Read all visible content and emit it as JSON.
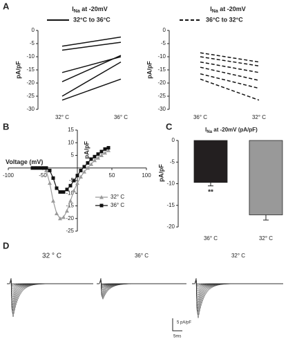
{
  "chart_data": [
    {
      "type": "line",
      "panel": "A",
      "title": "I",
      "title_subscript": "Na",
      "title_suffix": " at -20mV",
      "legend_label": "32°C to 36°C",
      "line_style": "solid",
      "y_label": "pA/pF",
      "categories": [
        "32° C",
        "36° C"
      ],
      "ylim": [
        -30,
        0
      ],
      "yticks": [
        0,
        -5,
        -10,
        -15,
        -20,
        -25,
        -30
      ],
      "series": [
        {
          "color": "#111111",
          "values": [
            -6,
            -2.5
          ]
        },
        {
          "color": "#111111",
          "values": [
            -7.5,
            -4.5
          ]
        },
        {
          "color": "#111111",
          "values": [
            -16,
            -10
          ]
        },
        {
          "color": "#111111",
          "values": [
            -19.5,
            -9.5
          ]
        },
        {
          "color": "#111111",
          "values": [
            -25,
            -12
          ]
        },
        {
          "color": "#111111",
          "values": [
            -26.5,
            -18.5
          ]
        }
      ]
    },
    {
      "type": "line",
      "title": "I",
      "title_subscript": "Na",
      "title_suffix": " at -20mV",
      "legend_label": "36°C to 32°C",
      "line_style": "dashed",
      "y_label": "pA/pF",
      "categories": [
        "36° C",
        "32° C"
      ],
      "ylim": [
        -30,
        0
      ],
      "yticks": [
        0,
        -5,
        -10,
        -15,
        -20,
        -25,
        -30
      ],
      "series": [
        {
          "color": "#111111",
          "values": [
            -8.5,
            -12
          ]
        },
        {
          "color": "#111111",
          "values": [
            -10,
            -13.5
          ]
        },
        {
          "color": "#111111",
          "values": [
            -12,
            -16
          ]
        },
        {
          "color": "#111111",
          "values": [
            -14,
            -19
          ]
        },
        {
          "color": "#111111",
          "values": [
            -16.5,
            -22
          ]
        },
        {
          "color": "#111111",
          "values": [
            -18.5,
            -26.5
          ]
        }
      ]
    },
    {
      "type": "scatter-line",
      "panel": "B",
      "x_label": "Voltage (mV)",
      "y_label": "pA/pF",
      "xlim": [
        -100,
        100
      ],
      "xticks": [
        -100,
        -50,
        50,
        100
      ],
      "ylim": [
        -25,
        15
      ],
      "yticks": [
        15,
        10,
        5,
        -5,
        -10,
        -15,
        -20,
        -25
      ],
      "x": [
        -65,
        -60,
        -55,
        -50,
        -45,
        -40,
        -35,
        -30,
        -25,
        -20,
        -15,
        -10,
        -5,
        0,
        5,
        10,
        15,
        20,
        25,
        30,
        35,
        40,
        45
      ],
      "series": [
        {
          "name": "32° C",
          "color": "#9a9a9a",
          "marker": "triangle",
          "values": [
            0,
            0,
            0,
            0,
            -1,
            -6,
            -13,
            -18,
            -20,
            -19.5,
            -17,
            -13,
            -9,
            -6,
            -3.5,
            -1.5,
            0,
            1.5,
            3,
            4,
            5,
            6,
            7
          ]
        },
        {
          "name": "36° C",
          "color": "#111111",
          "marker": "square",
          "values": [
            0,
            0,
            0,
            0,
            0,
            -1,
            -4,
            -8,
            -9.5,
            -9.5,
            -8.5,
            -7,
            -5,
            -3,
            -1,
            0.5,
            2,
            3.5,
            4.5,
            5.5,
            6.5,
            7.5,
            8
          ]
        }
      ]
    },
    {
      "type": "bar",
      "panel": "C",
      "title": "I",
      "title_subscript": "Na",
      "title_suffix": " at -20mV (pA/pF)",
      "y_label": "pA/pF",
      "categories": [
        "36° C",
        "32° C"
      ],
      "values": [
        -9.7,
        -17.2
      ],
      "errors": [
        0.8,
        1.2
      ],
      "colors": [
        "#231f20",
        "#999999"
      ],
      "annotation": "**",
      "ylim": [
        -20,
        0
      ],
      "yticks": [
        0,
        -5,
        -10,
        -15,
        -20
      ]
    }
  ],
  "panel_d": {
    "panel": "D",
    "labels": [
      "32 ° C",
      "36° C",
      "32° C"
    ],
    "scale_y_label": "5 pA/pF",
    "scale_x_label": "5ms"
  }
}
